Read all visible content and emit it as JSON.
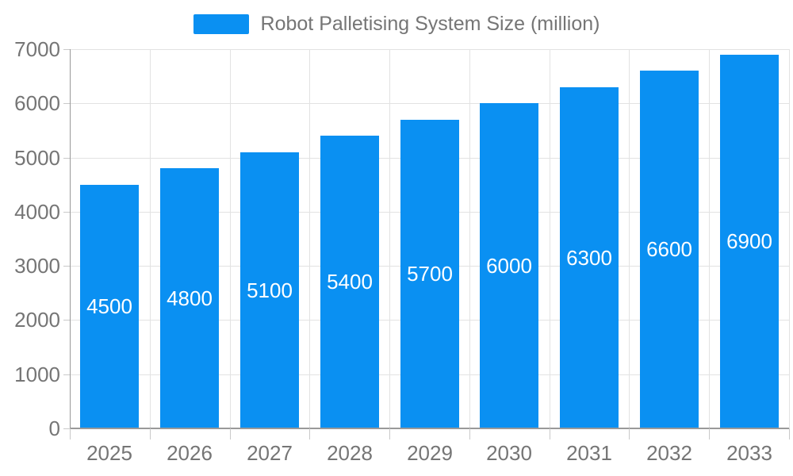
{
  "legend": {
    "label": "Robot Palletising System Size (million)"
  },
  "chart_data": {
    "type": "bar",
    "title": "Robot Palletising System Size (million)",
    "categories": [
      "2025",
      "2026",
      "2027",
      "2028",
      "2029",
      "2030",
      "2031",
      "2032",
      "2033"
    ],
    "values": [
      4500,
      4800,
      5100,
      5400,
      5700,
      6000,
      6300,
      6600,
      6900
    ],
    "series": [
      {
        "name": "Robot Palletising System Size (million)",
        "values": [
          4500,
          4800,
          5100,
          5400,
          5700,
          6000,
          6300,
          6600,
          6900
        ]
      }
    ],
    "xlabel": "",
    "ylabel": "",
    "ylim": [
      0,
      7000
    ],
    "ytick_step": 1000,
    "ytick_labels": [
      "0",
      "1000",
      "2000",
      "3000",
      "4000",
      "5000",
      "6000",
      "7000"
    ],
    "grid": true,
    "legend_position": "top",
    "bar_labels_visible": true,
    "colors": {
      "bar": "#0a90f2",
      "bar_label": "#ffffff",
      "axis_text": "#757575",
      "grid": "#e2e2e2",
      "axis_line": "#999999",
      "tick": "#c9c9c9",
      "background": "#ffffff"
    }
  }
}
